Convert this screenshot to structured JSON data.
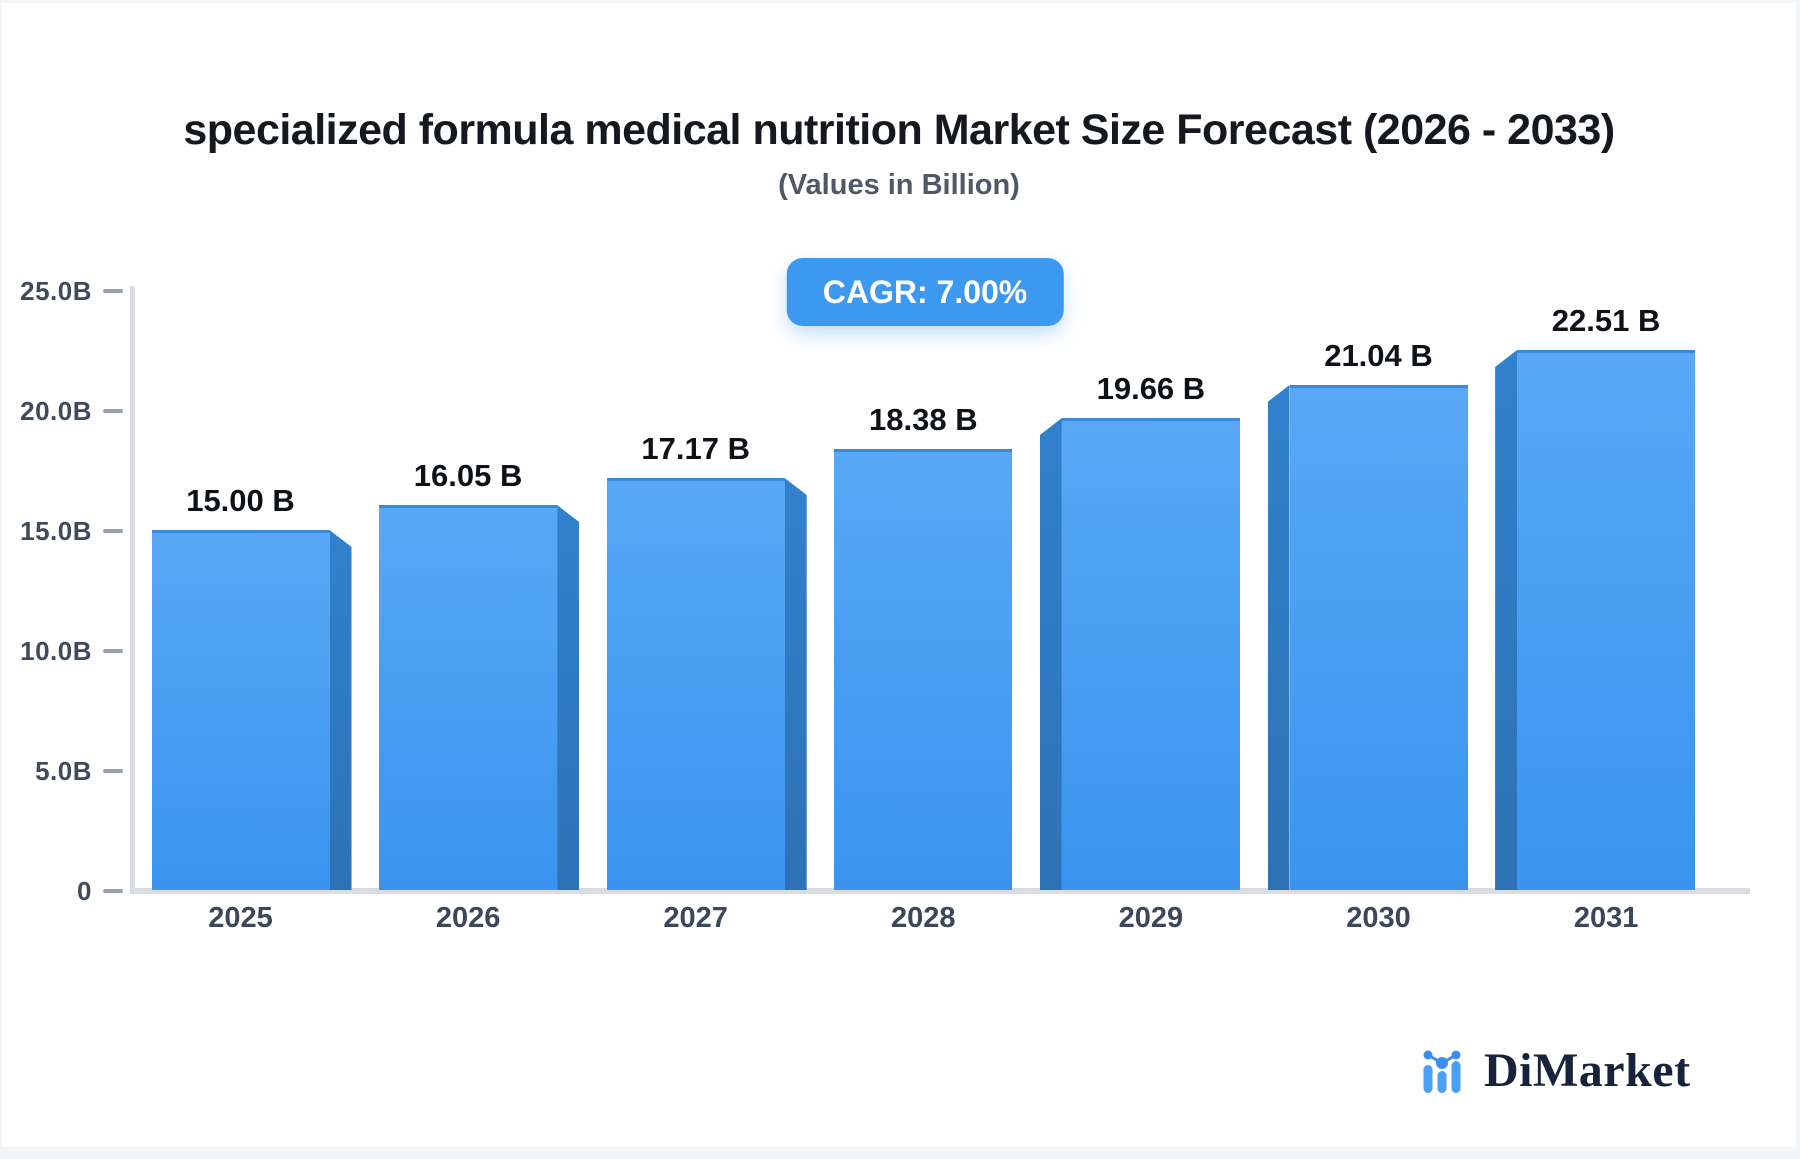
{
  "header": {
    "title": "specialized formula medical nutrition Market Size Forecast (2026 - 2033)",
    "subtitle": "(Values in Billion)"
  },
  "cagr_badge": {
    "label": "CAGR: 7.00%",
    "bg_color": "#3d98f0",
    "text_color": "#ffffff"
  },
  "chart_data": {
    "type": "bar",
    "title": "specialized formula medical nutrition Market Size Forecast (2026 - 2033)",
    "subtitle": "(Values in Billion)",
    "categories": [
      "2025",
      "2026",
      "2027",
      "2028",
      "2029",
      "2030",
      "2031"
    ],
    "values": [
      15.0,
      16.05,
      17.17,
      18.38,
      19.66,
      21.04,
      22.51
    ],
    "value_labels": [
      "15.00 B",
      "16.05 B",
      "17.17 B",
      "18.38 B",
      "19.66 B",
      "21.04 B",
      "22.51 B"
    ],
    "unit": "Billion",
    "cagr": "7.00%",
    "xlabel": "",
    "ylabel": "",
    "ylim": [
      0,
      25
    ],
    "yticks": [
      {
        "value": 25,
        "label": "25.0B"
      },
      {
        "value": 20,
        "label": "20.0B"
      },
      {
        "value": 15,
        "label": "15.0B"
      },
      {
        "value": 10,
        "label": "10.0B"
      },
      {
        "value": 5,
        "label": "5.0B"
      },
      {
        "value": 0,
        "label": "0"
      }
    ],
    "grid": false,
    "legend": false,
    "styles": {
      "bar_front_top": "#58a8f4",
      "bar_front_bottom": "#3a94ef",
      "bar_top_edge": "#3a8ad8",
      "bar_side_top": "#3081cd",
      "bar_side_bottom": "#2d72b4",
      "axis_line": "#d9dce1",
      "tick_dash": "#9aa2ad",
      "tick_label_color": "#3f4a5a",
      "category_label_color": "#3c4759",
      "value_label_color": "#0e1116"
    }
  },
  "logo": {
    "text": "DiMarket",
    "text_color": "#16233b",
    "icon_bar_color": "#4aa0f5",
    "icon_dot_color": "#3b8ef0"
  }
}
